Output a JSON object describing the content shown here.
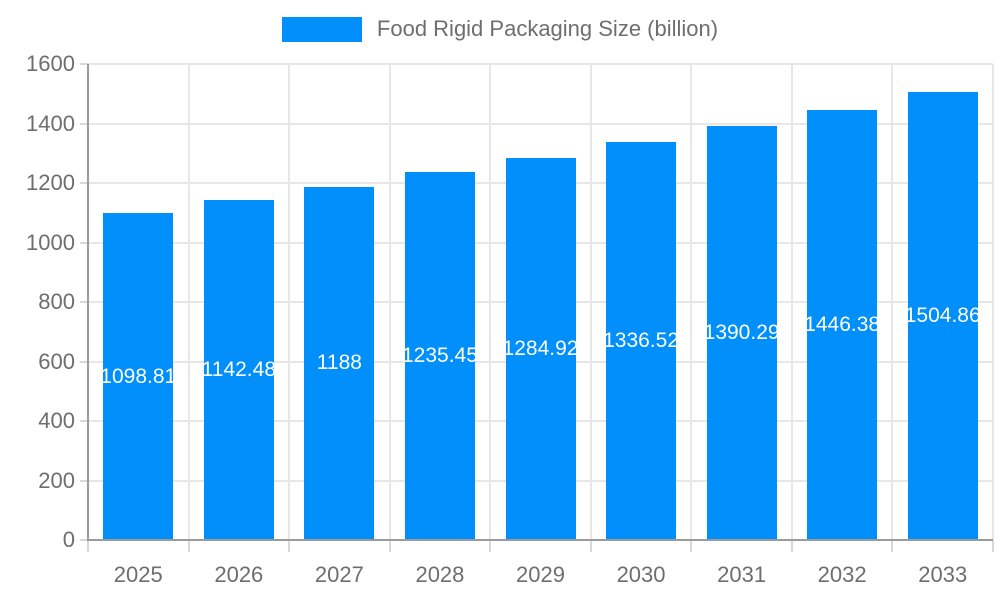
{
  "legend": {
    "label": "Food Rigid Packaging Size (billion)"
  },
  "colors": {
    "bar": "#008FFB",
    "value_text": "#ffffff",
    "axis_text": "#6e6e6e",
    "axis_line": "#9b9b9b",
    "gridline": "#e7e7e7",
    "tick": "#d8d8d8",
    "background": "#ffffff"
  },
  "chart_data": {
    "type": "bar",
    "title": "Food Rigid Packaging Size (billion)",
    "legend_position": "top",
    "categories": [
      "2025",
      "2026",
      "2027",
      "2028",
      "2029",
      "2030",
      "2031",
      "2032",
      "2033"
    ],
    "series": [
      {
        "name": "Food Rigid Packaging Size (billion)",
        "values": [
          1098.81,
          1142.48,
          1188,
          1235.45,
          1284.92,
          1336.52,
          1390.29,
          1446.38,
          1504.86
        ]
      }
    ],
    "xlabel": "",
    "ylabel": "",
    "ylim": [
      0,
      1600
    ],
    "yticks": [
      0,
      200,
      400,
      600,
      800,
      1000,
      1200,
      1400,
      1600
    ],
    "grid": true,
    "value_labels": {
      "position": "inside-center",
      "color": "#ffffff",
      "note": "labels clipped to bar width"
    }
  }
}
